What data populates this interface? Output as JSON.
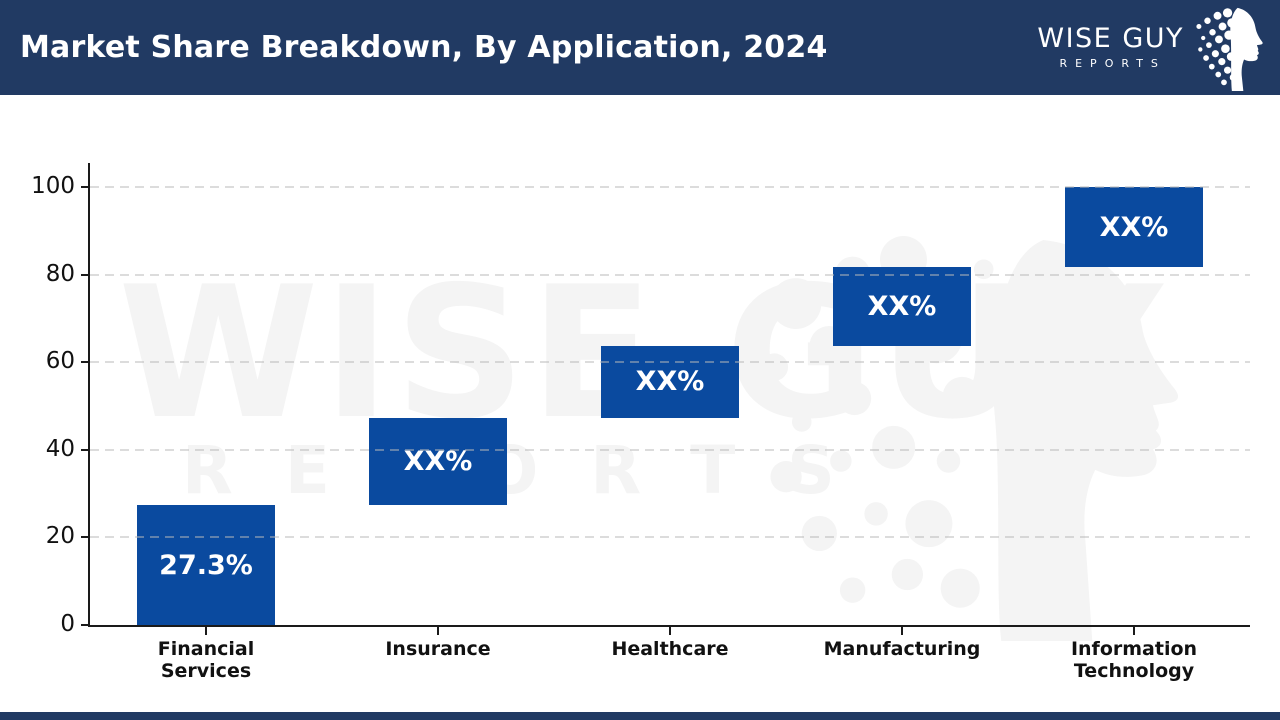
{
  "header": {
    "title": "Market Share Breakdown, By Application, 2024",
    "logo": {
      "wordmark": "WISE GUY",
      "subtext": "REPORTS"
    }
  },
  "watermark": {
    "wordmark": "WISE GUY",
    "subtext": "REPORTS"
  },
  "colors": {
    "header_bg": "#213a63",
    "footer_bg": "#213a63",
    "bar": "#0a4a9f",
    "bar_label": "#ffffff",
    "grid": "#dddddd",
    "axis": "#1a1a1a",
    "watermark": "#f4f4f4"
  },
  "chart_data": {
    "type": "bar",
    "subtype": "floating-waterfall",
    "title": "Market Share Breakdown, By Application, 2024",
    "xlabel": "",
    "ylabel": "",
    "categories": [
      "Financial Services",
      "Insurance",
      "Healthcare",
      "Manufacturing",
      "Information Technology"
    ],
    "segments": [
      {
        "category": "Financial Services",
        "start": 0,
        "end": 27.3,
        "label": "27.3%"
      },
      {
        "category": "Insurance",
        "start": 27.3,
        "end": 47.3,
        "label": "XX%"
      },
      {
        "category": "Healthcare",
        "start": 47.3,
        "end": 63.7,
        "label": "XX%"
      },
      {
        "category": "Manufacturing",
        "start": 63.7,
        "end": 81.7,
        "label": "XX%"
      },
      {
        "category": "Information Technology",
        "start": 81.7,
        "end": 100,
        "label": "XX%"
      }
    ],
    "yticks": [
      0,
      20,
      40,
      60,
      80,
      100
    ],
    "ylim": [
      0,
      105
    ],
    "grid": "dashed-horizontal",
    "legend": "none"
  }
}
